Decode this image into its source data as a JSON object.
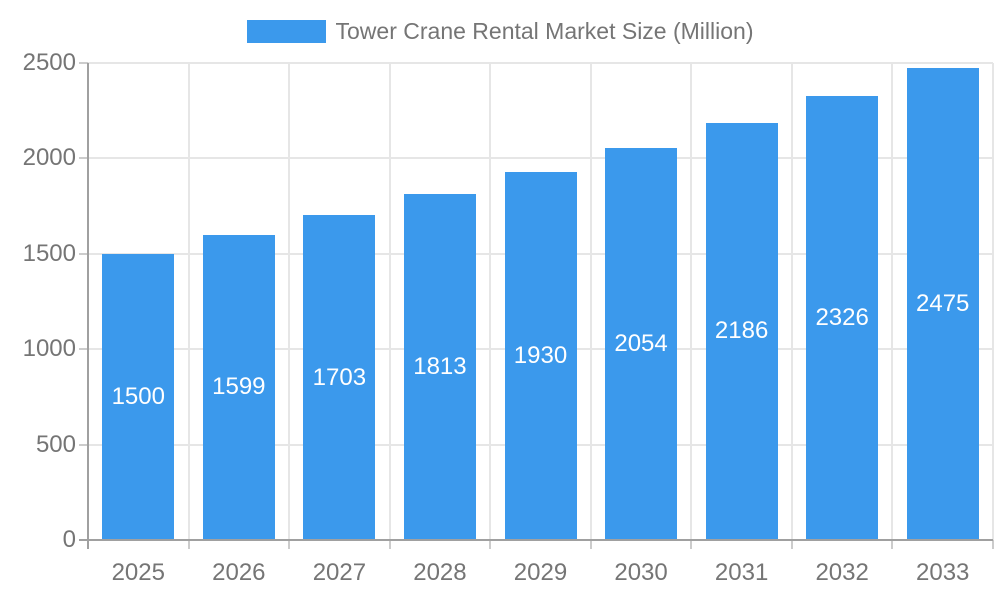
{
  "chart_data": {
    "type": "bar",
    "title": "Tower Crane Rental Market Size (Million)",
    "categories": [
      "2025",
      "2026",
      "2027",
      "2028",
      "2029",
      "2030",
      "2031",
      "2032",
      "2033"
    ],
    "values": [
      1500,
      1599,
      1703,
      1813,
      1930,
      2054,
      2186,
      2326,
      2475
    ],
    "series_name": "Tower Crane Rental Market Size (Million)",
    "xlabel": "",
    "ylabel": "",
    "ylim": [
      0,
      2500
    ],
    "yticks": [
      0,
      500,
      1000,
      1500,
      2000,
      2500
    ],
    "grid": true,
    "legend_position": "top-center",
    "value_labels": "inside-center",
    "colors": {
      "bar": "#3b99ec",
      "grid": "#e6e6e6",
      "axis_border": "#a0a0a0",
      "tick": "#cccccc",
      "axis_text": "#757575",
      "value_label_text": "#ffffff",
      "background": "#ffffff"
    }
  },
  "legend": {
    "label": "Tower Crane Rental Market Size (Million)"
  }
}
